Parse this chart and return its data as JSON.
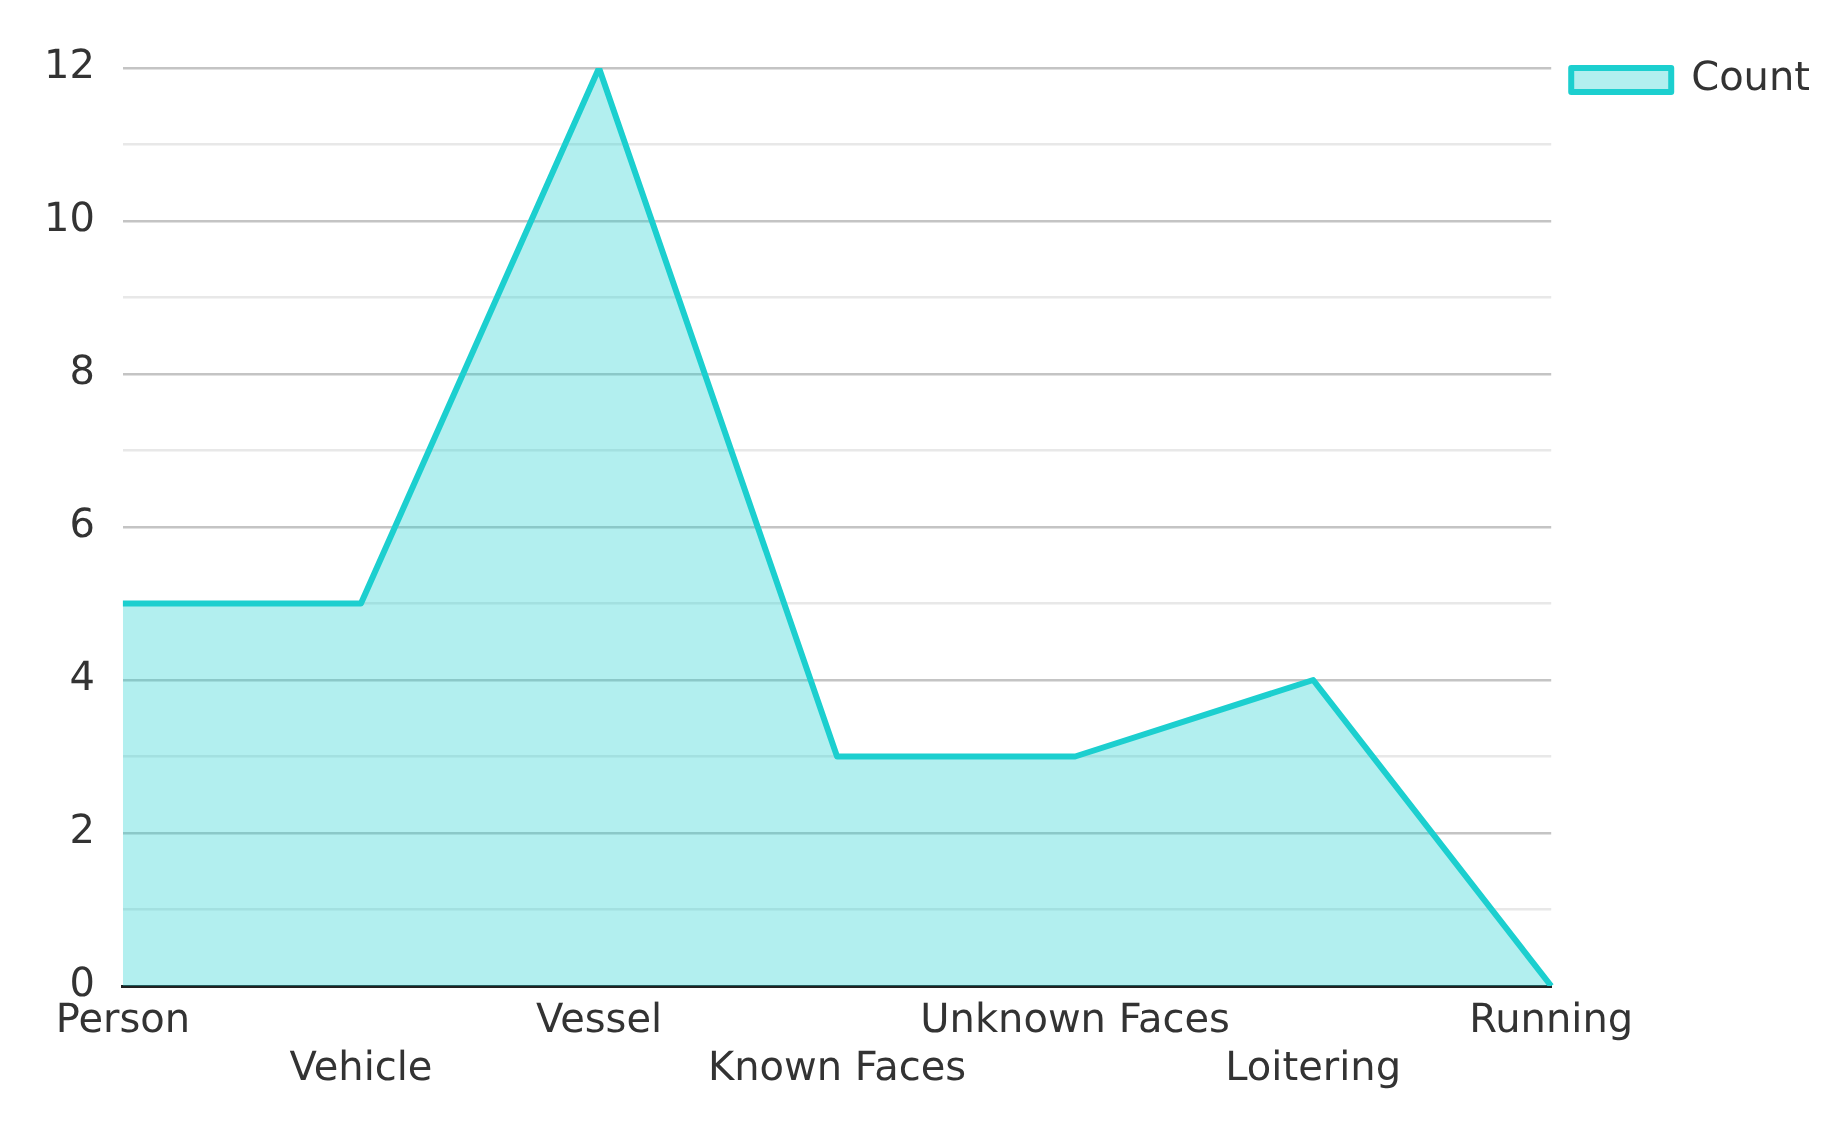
{
  "chart_data": {
    "type": "area",
    "categories": [
      "Person",
      "Vehicle",
      "Vessel",
      "Known Faces",
      "Unknown Faces",
      "Loitering",
      "Running"
    ],
    "series": [
      {
        "name": "Count",
        "color": "#1ccfcf",
        "values": [
          5,
          5,
          12,
          3,
          3,
          4,
          0
        ]
      }
    ],
    "ylim": [
      0,
      12
    ],
    "yticks": [
      0,
      {
        "value": 1,
        "label": null
      },
      2,
      {
        "value": 3,
        "label": null
      },
      4,
      {
        "value": 5,
        "label": null
      },
      6,
      {
        "value": 7,
        "label": null
      },
      8,
      {
        "value": 9,
        "label": null
      },
      10,
      {
        "value": 11,
        "label": null
      },
      12
    ],
    "grid": "y",
    "legend": "top right",
    "marker": "none"
  }
}
